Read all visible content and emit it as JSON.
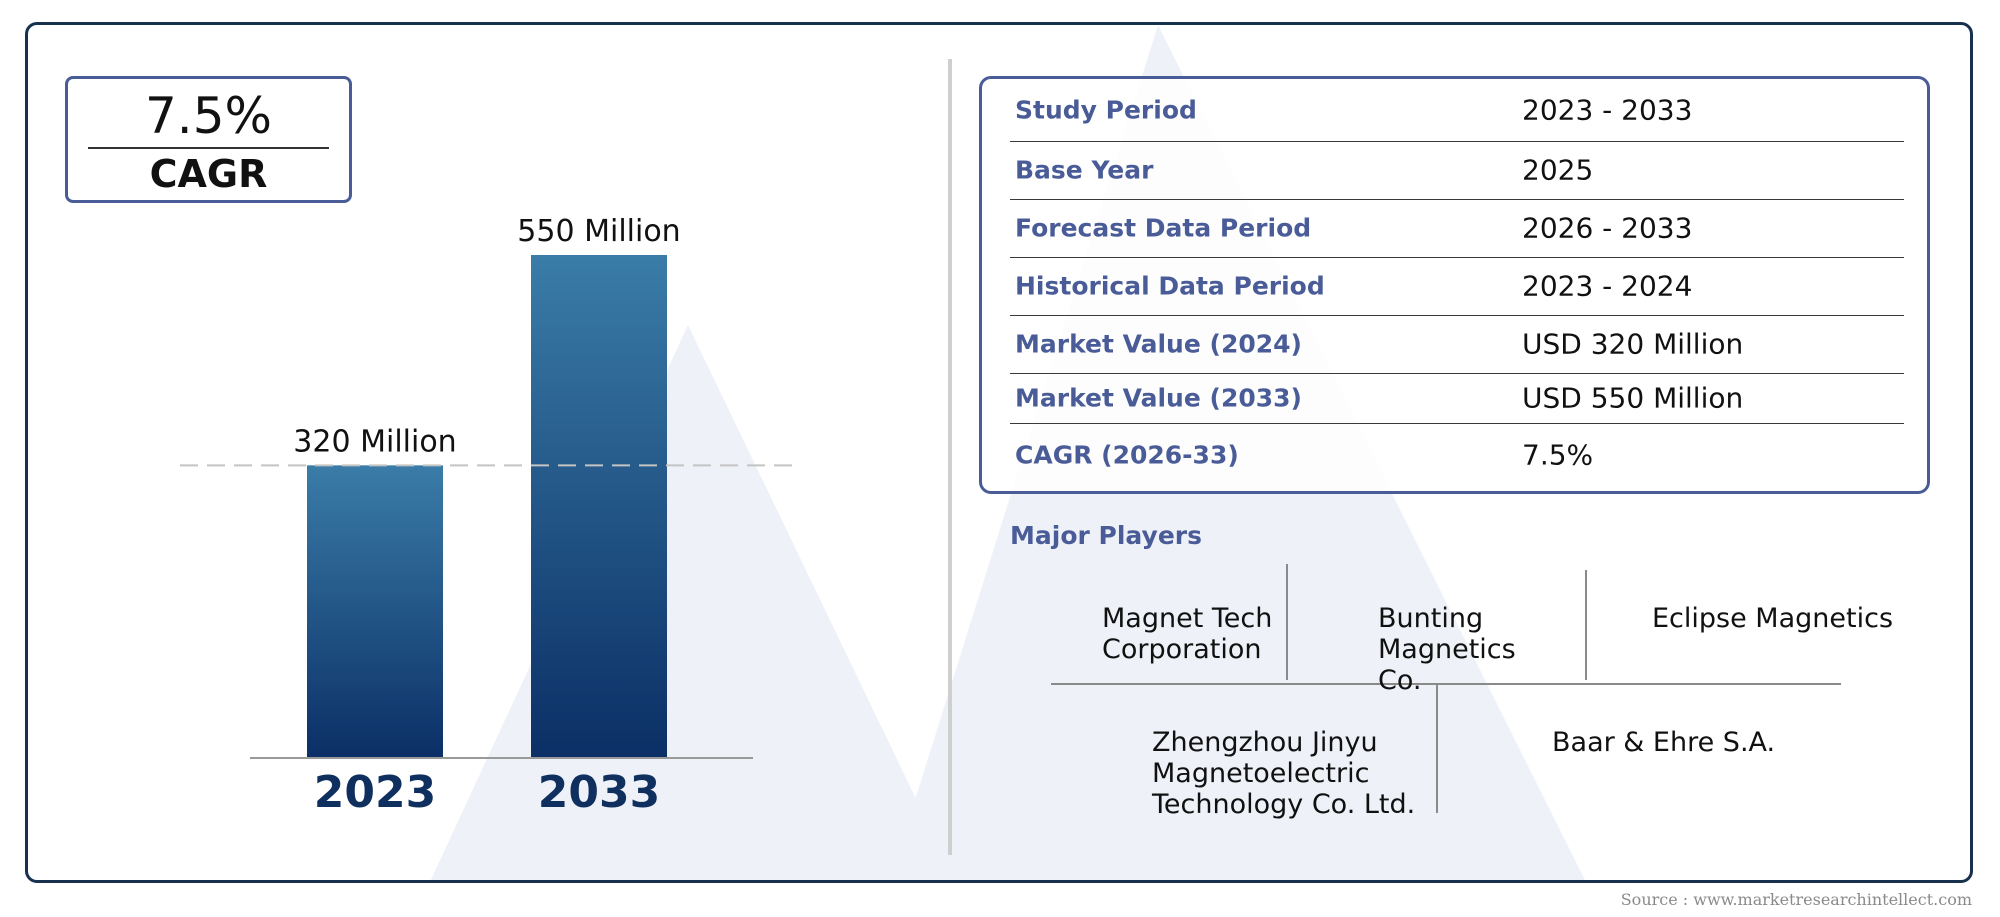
{
  "cagr": {
    "value": "7.5%",
    "label": "CAGR"
  },
  "chart_data": {
    "type": "bar",
    "categories": [
      "2023",
      "2033"
    ],
    "values": [
      320,
      550
    ],
    "data_labels": [
      "320 Million",
      "550 Million"
    ],
    "ylim": [
      0,
      550
    ],
    "grid": false,
    "reference_line_value": 320,
    "colors": {
      "bar_top": "#3a7ca8",
      "bar_bottom": "#0b2f66",
      "axis": "#9a9a9a"
    }
  },
  "info": {
    "rows": [
      {
        "label": "Study Period",
        "value": "2023 - 2033"
      },
      {
        "label": "Base Year",
        "value": "2025"
      },
      {
        "label": "Forecast Data Period",
        "value": "2026 - 2033"
      },
      {
        "label": "Historical Data Period",
        "value": "2023 - 2024"
      },
      {
        "label": "Market Value (2024)",
        "value": "USD 320 Million"
      },
      {
        "label": "Market Value (2033)",
        "value": "USD 550 Million"
      },
      {
        "label": "CAGR (2026-33)",
        "value": "7.5%"
      }
    ]
  },
  "players": {
    "title": "Major Players",
    "items": [
      "Magnet Tech\nCorporation",
      "Bunting\nMagnetics\nCo.",
      "Eclipse Magnetics",
      "Zhengzhou Jinyu\nMagnetoelectric\nTechnology Co. Ltd.",
      "Baar & Ehre S.A."
    ]
  },
  "source": "Source : www.marketresearchintellect.com",
  "colors": {
    "accent": "#4a5c98",
    "frame": "#17314f",
    "year_label": "#0f2f5e"
  }
}
